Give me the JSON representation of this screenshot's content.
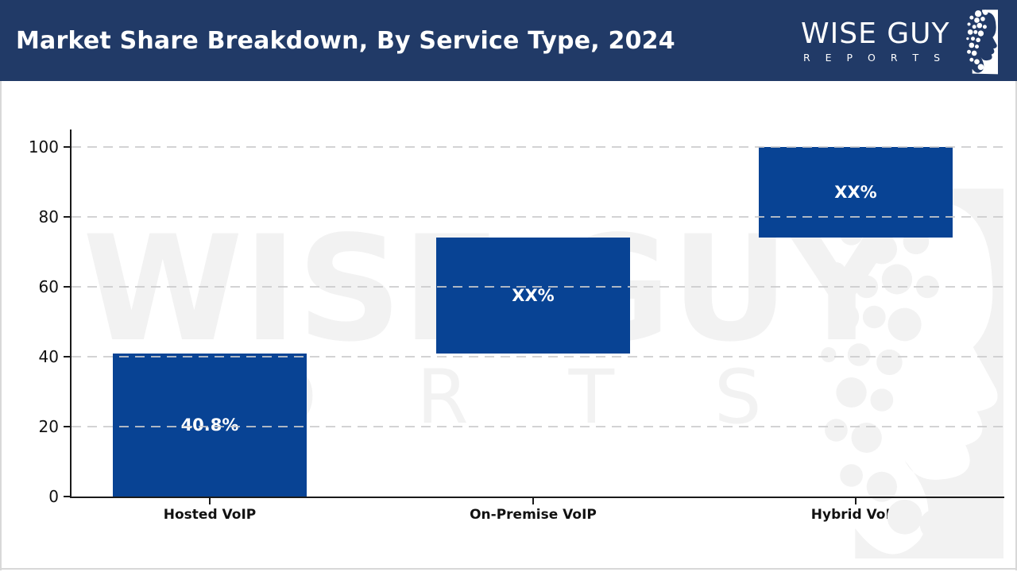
{
  "header": {
    "title": "Market Share Breakdown, By Service Type, 2024",
    "logo": {
      "line1": "WISE GUY",
      "line2": "R E P O R T S"
    }
  },
  "watermark": {
    "line1": "WISE GUY",
    "line2": "P O R T S"
  },
  "colors": {
    "header_bg": "#213a67",
    "bar": "#084394",
    "bar_label": "#ffffff",
    "gridline": "#cbcbcd",
    "axis": "#1a1a1a",
    "watermark": "#f2f2f2"
  },
  "chart_data": {
    "type": "bar",
    "subtype": "floating-stacked-waterfall",
    "title": "Market Share Breakdown, By Service Type, 2024",
    "categories": [
      "Hosted VoIP",
      "On-Premise VoIP",
      "Hybrid VoIP"
    ],
    "segments": [
      {
        "category": "Hosted VoIP",
        "start": 0,
        "end": 40.8,
        "label": "40.8%"
      },
      {
        "category": "On-Premise VoIP",
        "start": 40.8,
        "end": 74,
        "label": "XX%"
      },
      {
        "category": "Hybrid VoIP",
        "start": 74,
        "end": 100,
        "label": "XX%"
      }
    ],
    "yticks": [
      0,
      20,
      40,
      60,
      80,
      100
    ],
    "ylim": [
      0,
      105
    ],
    "xlabel": "",
    "ylabel": "",
    "grid": "horizontal-dashed-over-bars",
    "legend": "none"
  }
}
